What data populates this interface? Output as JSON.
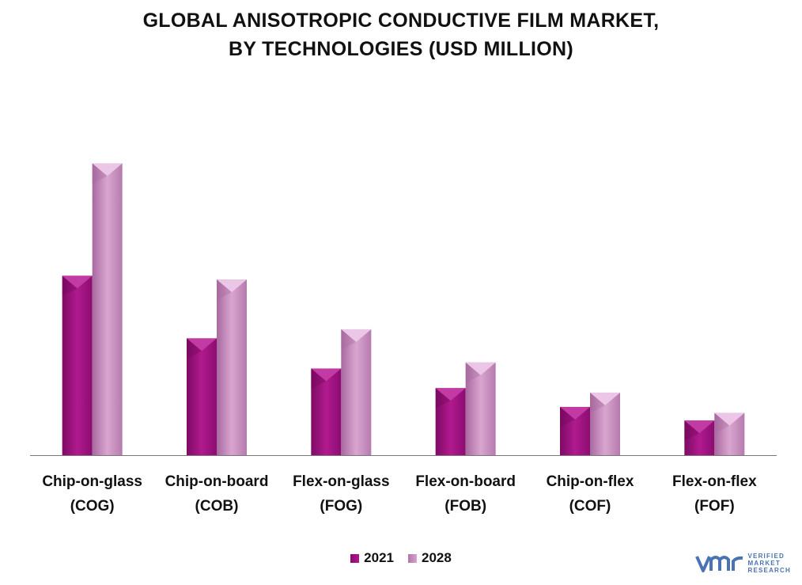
{
  "chart_data": {
    "type": "bar",
    "title": [
      "GLOBAL ANISOTROPIC CONDUCTIVE FILM MARKET,",
      "BY TECHNOLOGIES (USD MILLION)"
    ],
    "categories": [
      [
        "Chip-on-glass",
        "(COG)"
      ],
      [
        "Chip-on-board",
        "(COB)"
      ],
      [
        "Flex-on-glass",
        "(FOG)"
      ],
      [
        "Flex-on-board",
        "(FOB)"
      ],
      [
        "Chip-on-flex",
        "(COF)"
      ],
      [
        "Flex-on-flex",
        "(FOF)"
      ]
    ],
    "series": [
      {
        "name": "2021",
        "values": [
          238,
          155,
          115,
          89,
          64,
          46
        ]
      },
      {
        "name": "2028",
        "values": [
          387,
          233,
          167,
          123,
          83,
          56
        ]
      }
    ],
    "ylim": [
      0,
      420
    ],
    "grid": false,
    "legend_position": "bottom",
    "colors": {
      "2021": "#a0127f",
      "2028": "#c88ec0"
    }
  },
  "logo": {
    "mark": "vmr",
    "lines": [
      "VERIFIED",
      "MARKET",
      "RESEARCH"
    ]
  }
}
